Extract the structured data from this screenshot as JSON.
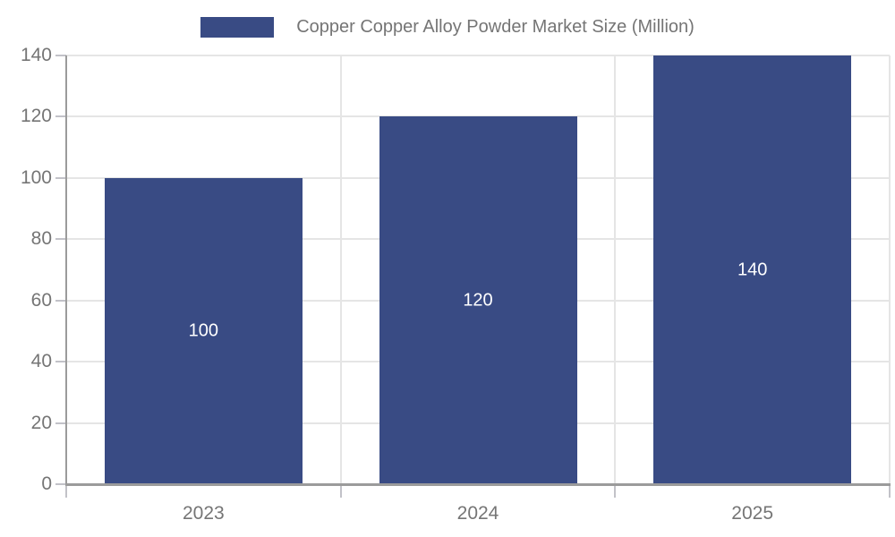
{
  "chart_data": {
    "type": "bar",
    "title": "Copper Copper Alloy Powder Market Size (Million)",
    "legend": {
      "label": "Copper Copper Alloy Powder Market Size (Million)",
      "position": "top"
    },
    "categories": [
      "2023",
      "2024",
      "2025"
    ],
    "values": [
      100,
      120,
      140
    ],
    "bar_value_labels": [
      "100",
      "120",
      "140"
    ],
    "xlabel": "",
    "ylabel": "",
    "ylim": [
      0,
      140
    ],
    "yticks": [
      0,
      20,
      40,
      60,
      80,
      100,
      120,
      140
    ],
    "ytick_labels": [
      "0",
      "20",
      "40",
      "60",
      "80",
      "100",
      "120",
      "140"
    ],
    "grid": true,
    "colors": {
      "bar_fill": "#394B84",
      "bar_value_text": "#ffffff",
      "axis_text": "#757575",
      "legend_text": "#757575",
      "gridline": "#e5e5e5",
      "axis_line": "#9b9b9b",
      "tick_line": "#c2c2c8",
      "background": "#ffffff"
    }
  }
}
